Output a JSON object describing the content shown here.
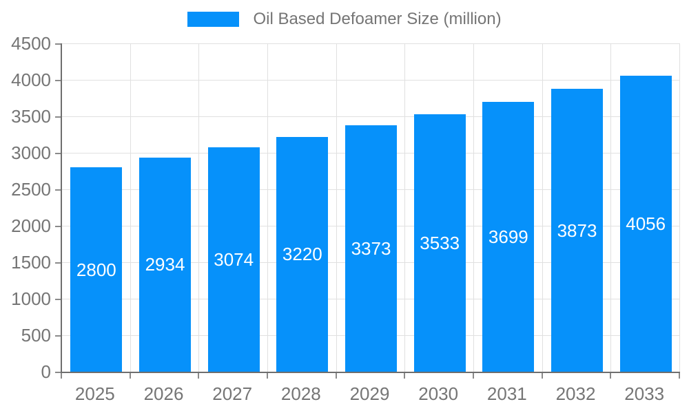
{
  "legend": {
    "label": "Oil Based Defoamer Size (million)"
  },
  "chart_data": {
    "type": "bar",
    "title": "Oil Based Defoamer Size (million)",
    "categories": [
      "2025",
      "2026",
      "2027",
      "2028",
      "2029",
      "2030",
      "2031",
      "2032",
      "2033"
    ],
    "values": [
      2800,
      2934,
      3074,
      3220,
      3373,
      3533,
      3699,
      3873,
      4056
    ],
    "xlabel": "",
    "ylabel": "",
    "ylim": [
      0,
      4500
    ],
    "ytick_step": 500,
    "grid": true,
    "legend_position": "top",
    "bar_color": "#0691fa",
    "bar_label_color": "#ffffff",
    "axis_text_color": "#757575",
    "gridline_color": "#e0e0e0"
  }
}
